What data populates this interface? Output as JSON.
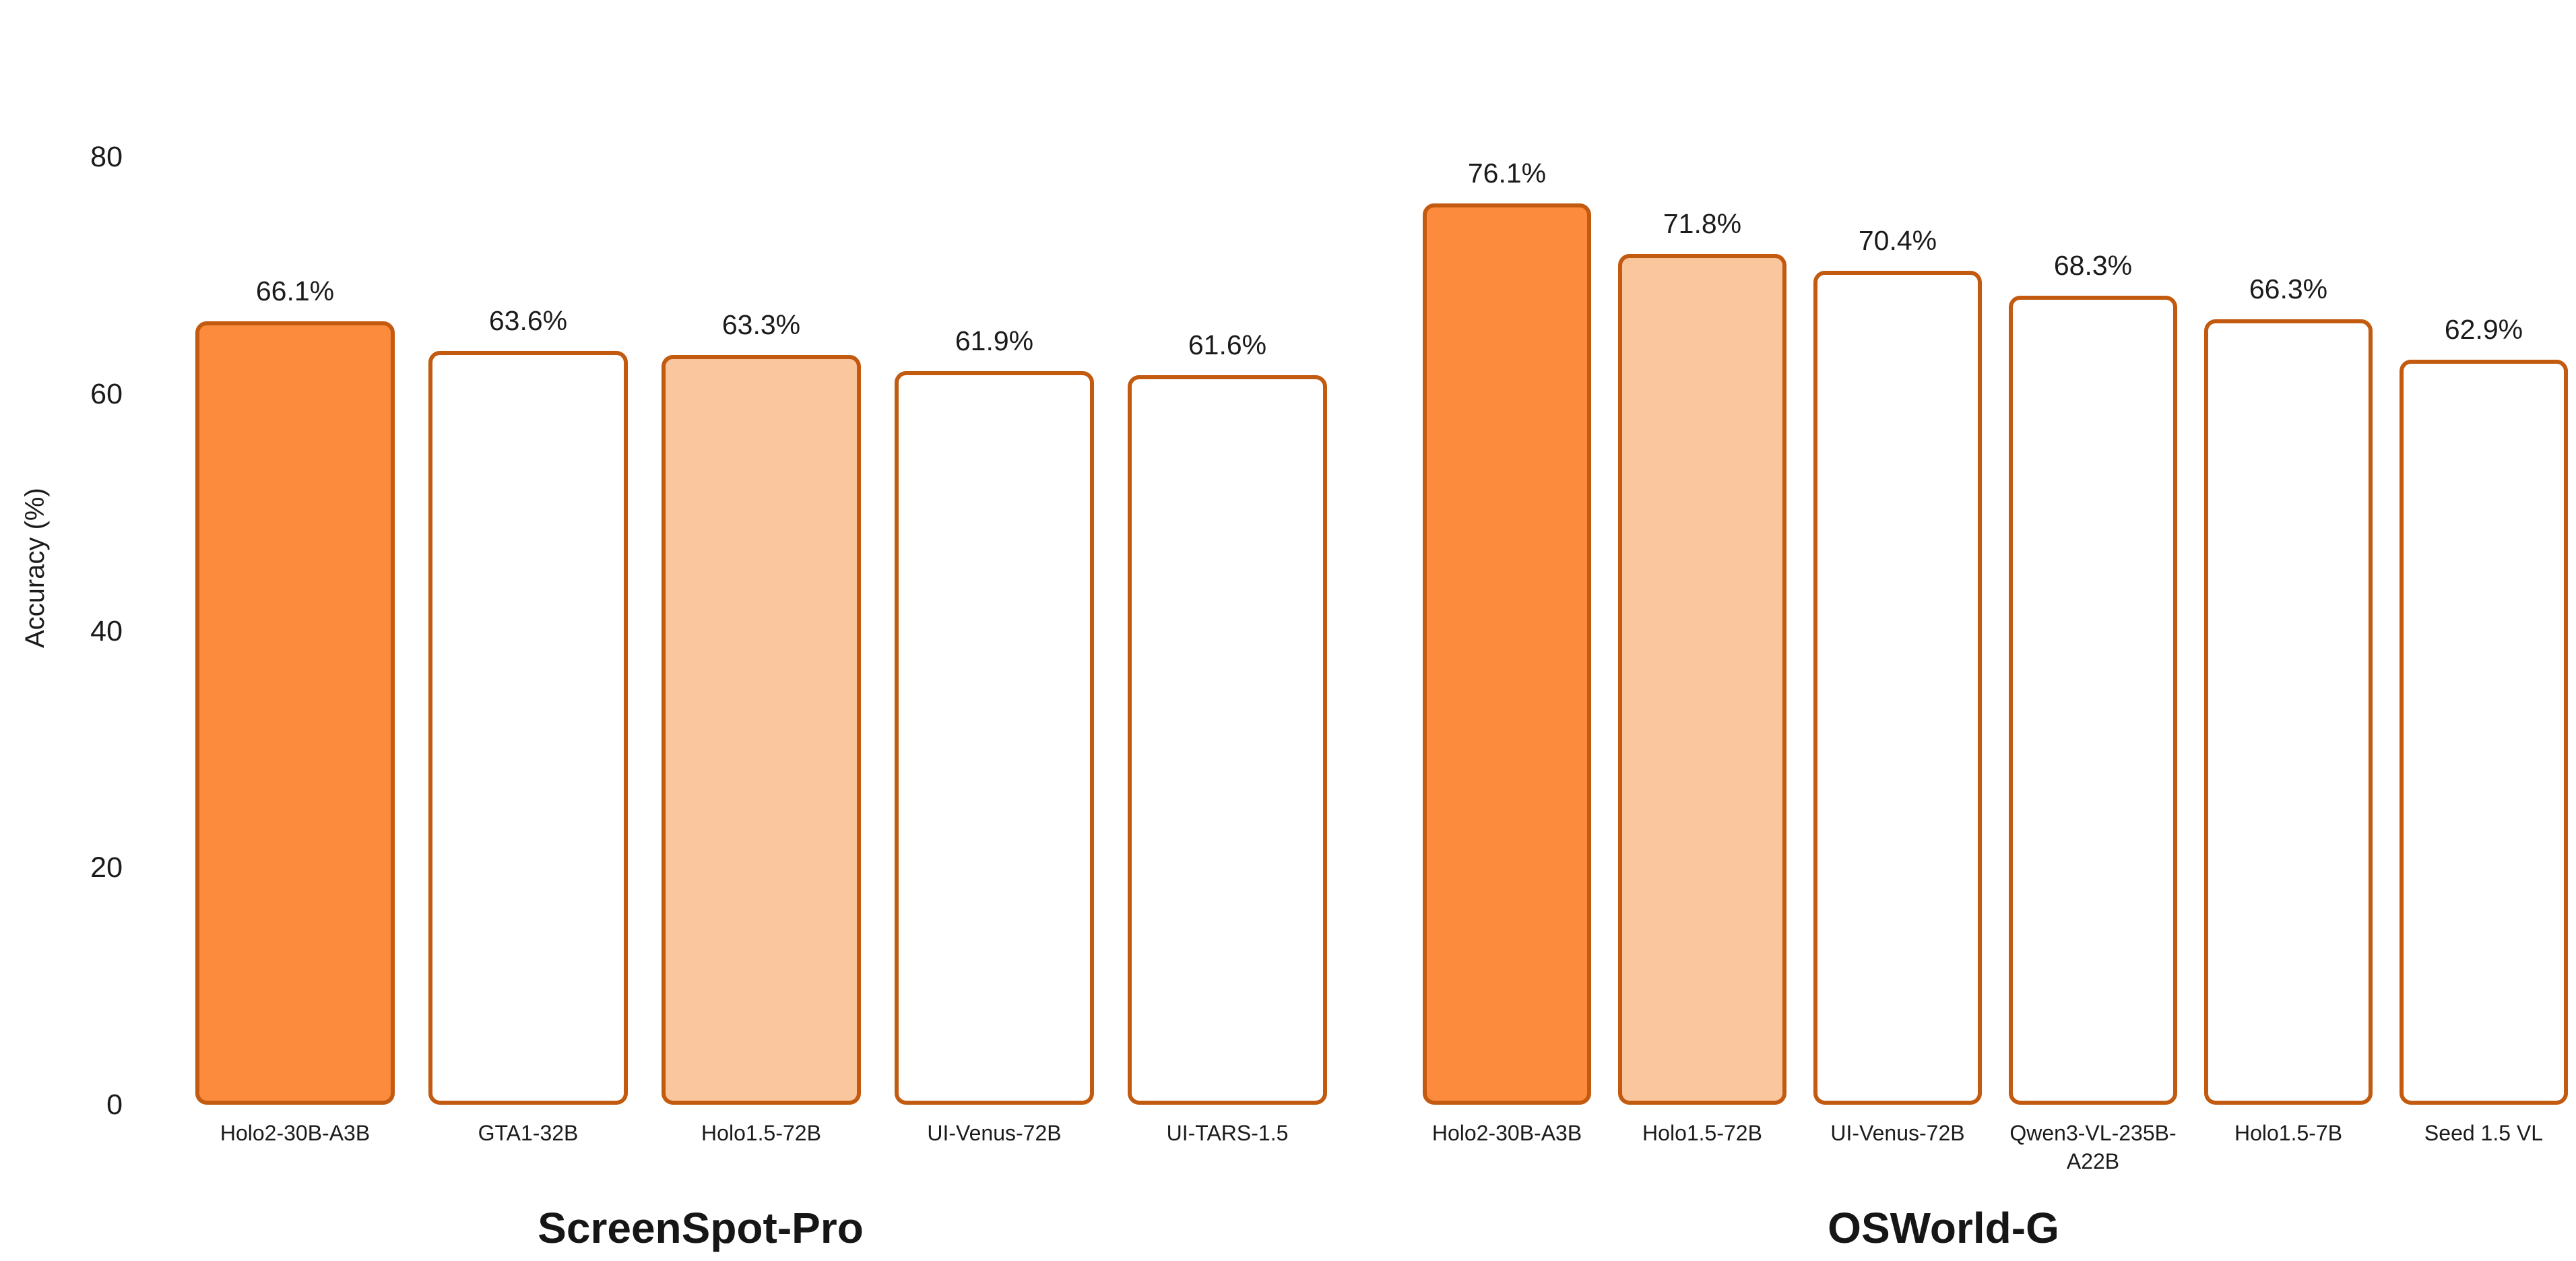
{
  "chart_data": {
    "type": "bar",
    "ylabel": "Accuracy (%)",
    "ylim": [
      0,
      80
    ],
    "yticks": [
      0,
      20,
      40,
      60,
      80
    ],
    "grid": false,
    "legend": null,
    "value_suffix": "%",
    "colors": {
      "bar_outline": "#c25a10",
      "bar_fill_highlight": "#fc8b3d",
      "bar_fill_secondary": "#fac69e",
      "bar_fill_default": "#ffffff",
      "text": "#1b1b1b"
    },
    "charts": [
      {
        "title": "ScreenSpot-Pro",
        "categories": [
          "Holo2-30B-A3B",
          "GTA1-32B",
          "Holo1.5-72B",
          "UI-Venus-72B",
          "UI-TARS-1.5"
        ],
        "values": [
          66.1,
          63.6,
          63.3,
          61.9,
          61.6
        ],
        "value_labels": [
          "66.1%",
          "63.6%",
          "63.3%",
          "61.9%",
          "61.6%"
        ],
        "bar_styles": [
          "solid",
          "outline",
          "light",
          "outline",
          "outline"
        ]
      },
      {
        "title": "OSWorld-G",
        "categories": [
          "Holo2-30B-A3B",
          "Holo1.5-72B",
          "UI-Venus-72B",
          "Qwen3-VL-235B-A22B",
          "Holo1.5-7B",
          "Seed 1.5 VL"
        ],
        "values": [
          76.1,
          71.8,
          70.4,
          68.3,
          66.3,
          62.9
        ],
        "value_labels": [
          "76.1%",
          "71.8%",
          "70.4%",
          "68.3%",
          "66.3%",
          "62.9%"
        ],
        "bar_styles": [
          "solid",
          "light",
          "outline",
          "outline",
          "outline",
          "outline"
        ]
      }
    ]
  }
}
